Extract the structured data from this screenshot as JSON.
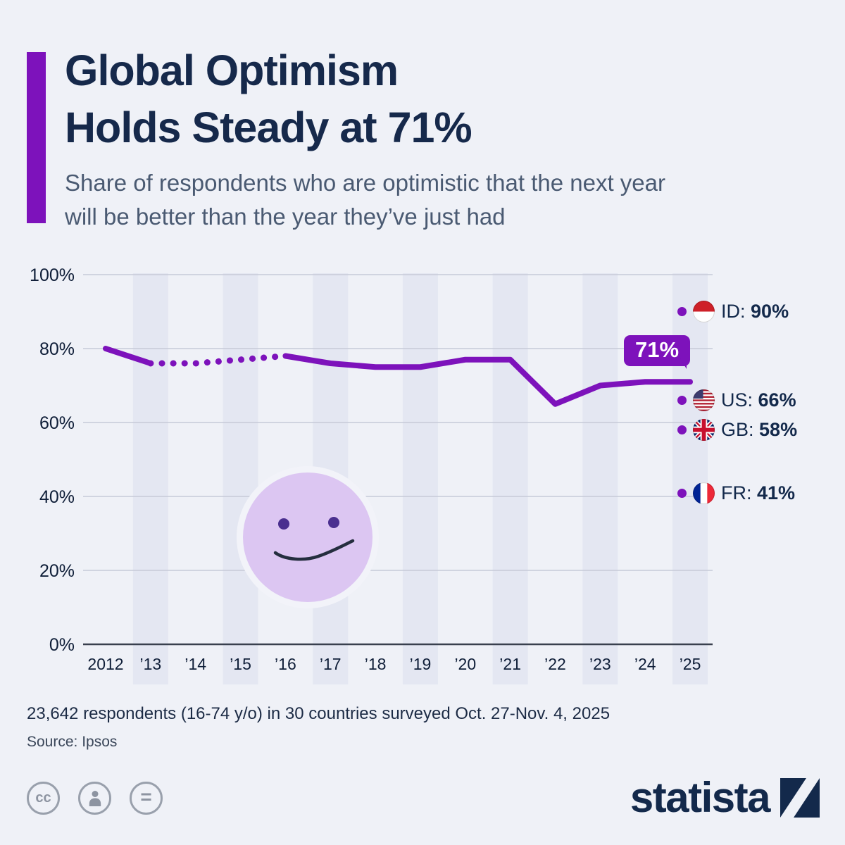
{
  "header": {
    "title_line1": "Global Optimism",
    "title_line2": "Holds Steady at 71%",
    "subtitle_line1": "Share of respondents who are optimistic that the next year",
    "subtitle_line2": "will be better than the year they’ve just had"
  },
  "chart_data": {
    "type": "line",
    "title": "Global Optimism Holds Steady at 71%",
    "x": [
      "2012",
      "’13",
      "’14",
      "’15",
      "’16",
      "’17",
      "’18",
      "’19",
      "’20",
      "’21",
      "’22",
      "’23",
      "’24",
      "’25"
    ],
    "values": [
      80,
      76,
      76,
      77,
      78,
      76,
      75,
      75,
      77,
      77,
      65,
      70,
      71,
      71
    ],
    "dotted_segment_indices": [
      1,
      4
    ],
    "ylim": [
      0,
      100
    ],
    "ytick_values": [
      100,
      80,
      60,
      40,
      20,
      0
    ],
    "ytick_labels": [
      "100%",
      "80%",
      "60%",
      "40%",
      "20%",
      "0%"
    ],
    "grid": true,
    "striped_columns": true,
    "line_color": "#7d12bb",
    "annotation": {
      "label": "71%",
      "x": "’25",
      "value": 71
    },
    "legend": [
      {
        "label": "ID:",
        "value": "90%",
        "numeric": 90,
        "country": "Indonesia"
      },
      {
        "label": "US:",
        "value": "66%",
        "numeric": 66,
        "country": "United States"
      },
      {
        "label": "GB:",
        "value": "58%",
        "numeric": 58,
        "country": "United Kingdom"
      },
      {
        "label": "FR:",
        "value": "41%",
        "numeric": 41,
        "country": "France"
      }
    ]
  },
  "footer": {
    "note": "23,642 respondents (16-74 y/o) in 30 countries surveyed Oct. 27-Nov. 4, 2025",
    "source": "Source: Ipsos",
    "brand": "statista"
  },
  "icons": {
    "creative_commons": "cc",
    "attribution": "person",
    "no_derivatives": "=",
    "smiley": "smiley-face"
  },
  "colors": {
    "accent": "#7d12bb",
    "title": "#16294b",
    "subtitle": "#4a5a72",
    "background": "#eff1f7",
    "stripe": "#e4e7f2",
    "smiley_fill": "#dcc6f2",
    "smiley_eyes": "#4a2f8f"
  }
}
